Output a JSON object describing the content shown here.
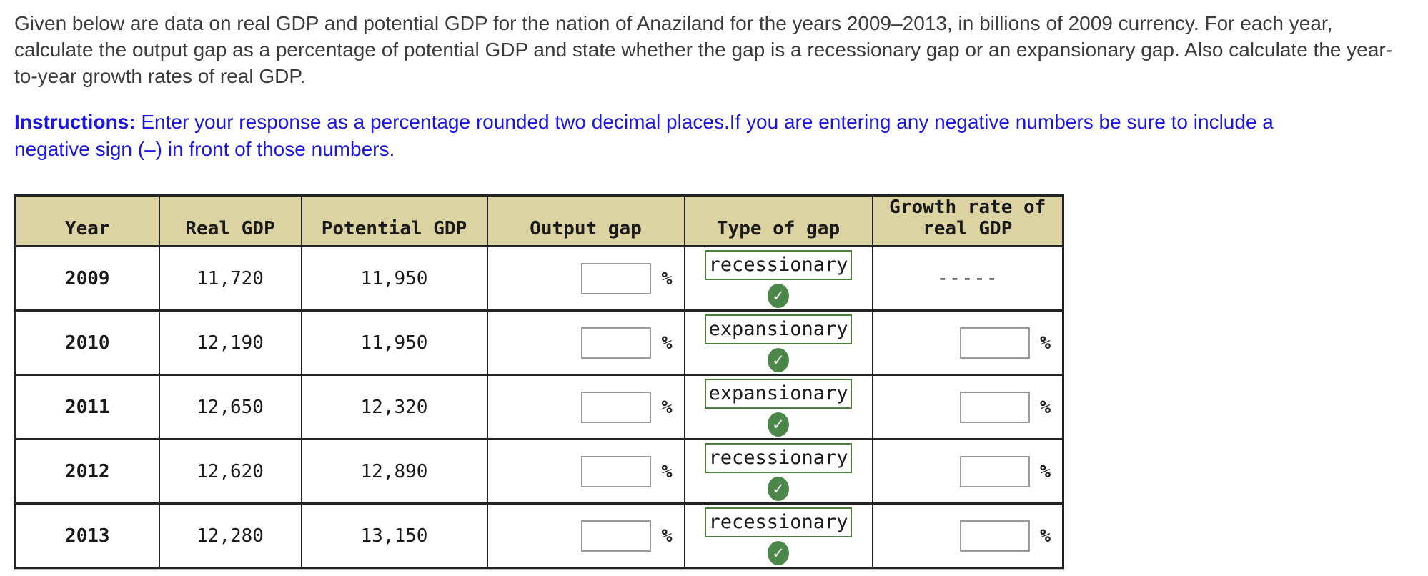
{
  "colors": {
    "header_bg": "#dbd3a2",
    "table_border": "#232323",
    "select_border": "#4e7e3e",
    "check_green": "#4a8748",
    "input_border": "#9a9a9a",
    "instructions_blue": "#1b16e0",
    "body_text": "#3c3c3c",
    "table_text": "#1a1a1a"
  },
  "question": {
    "paragraph": "Given below are data on real GDP and potential GDP for the nation of Anaziland for the years 2009–2013, in billions of 2009 currency. For each year, calculate the output gap as a percentage of potential GDP and state whether the gap is a recessionary gap or an expansionary gap. Also calculate the year-to-year growth rates of real GDP.",
    "instructions_label": "Instructions:",
    "instructions_text": "Enter your response as a percentage rounded two decimal places.If you are entering any negative numbers be sure to include a negative sign (–) in front of those numbers."
  },
  "table": {
    "headers": {
      "year": "Year",
      "real_gdp": "Real GDP",
      "potential_gdp": "Potential GDP",
      "output_gap": "Output gap",
      "type_of_gap": "Type of gap",
      "growth_rate": "Growth rate of real GDP"
    },
    "percent_sign": "%",
    "no_value_dashes": "-----",
    "rows": [
      {
        "year": "2009",
        "real_gdp": "11,720",
        "potential_gdp": "11,950",
        "output_gap_input": "",
        "gap_type": "recessionary",
        "growth_rate_input": null
      },
      {
        "year": "2010",
        "real_gdp": "12,190",
        "potential_gdp": "11,950",
        "output_gap_input": "",
        "gap_type": "expansionary",
        "growth_rate_input": ""
      },
      {
        "year": "2011",
        "real_gdp": "12,650",
        "potential_gdp": "12,320",
        "output_gap_input": "",
        "gap_type": "expansionary",
        "growth_rate_input": ""
      },
      {
        "year": "2012",
        "real_gdp": "12,620",
        "potential_gdp": "12,890",
        "output_gap_input": "",
        "gap_type": "recessionary",
        "growth_rate_input": ""
      },
      {
        "year": "2013",
        "real_gdp": "12,280",
        "potential_gdp": "13,150",
        "output_gap_input": "",
        "gap_type": "recessionary",
        "growth_rate_input": ""
      }
    ]
  },
  "icons": {
    "check": "✓"
  }
}
